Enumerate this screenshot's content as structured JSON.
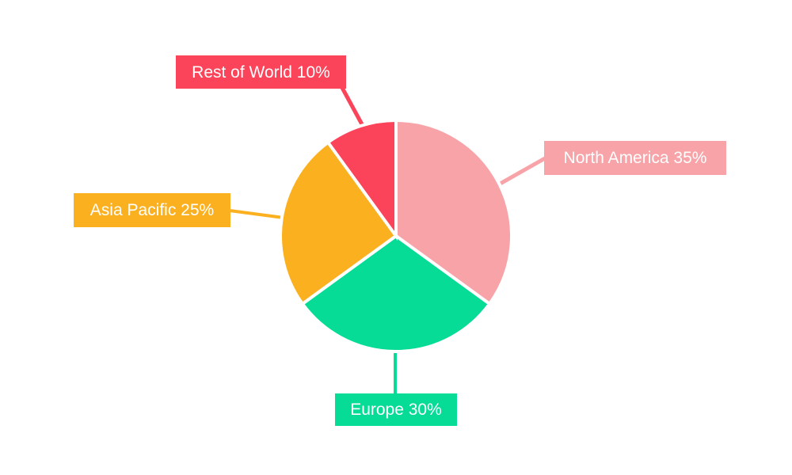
{
  "chart_data": {
    "type": "pie",
    "title": "",
    "labels": [
      "North America",
      "Europe",
      "Asia Pacific",
      "Rest of World"
    ],
    "values": [
      35,
      30,
      25,
      10
    ],
    "unit": "%",
    "display_labels": [
      "North America 35%",
      "Europe 30%",
      "Asia Pacific 25%",
      "Rest of World 10%"
    ],
    "colors": [
      "#F7A3A8",
      "#06DC95",
      "#FBB020",
      "#FB4359"
    ],
    "start_angle": "12 o'clock",
    "direction": "clockwise",
    "slice_separator_color": "#ffffff",
    "background_color": "#ffffff",
    "legend": "none",
    "label_style": "external colored callout boxes with leader lines"
  }
}
